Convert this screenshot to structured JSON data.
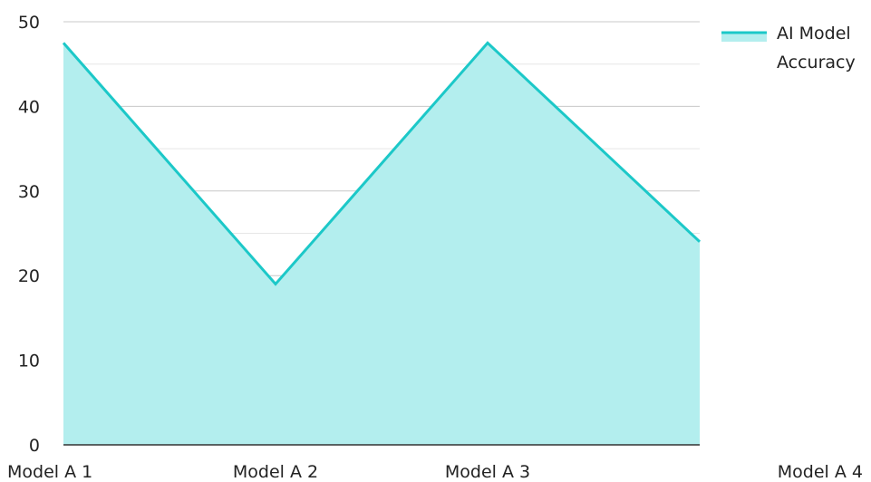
{
  "chart_data": {
    "type": "area",
    "categories": [
      "Model A 1",
      "Model A 2",
      "Model A 3",
      "Model A 4"
    ],
    "series": [
      {
        "name": "AI Model Accuracy",
        "values": [
          47.5,
          19,
          47.5,
          24
        ]
      }
    ],
    "title": "",
    "xlabel": "",
    "ylabel": "",
    "ylim": [
      0,
      50
    ],
    "yticks": [
      0,
      10,
      20,
      30,
      40,
      50
    ],
    "grid": true,
    "legend_position": "top-right",
    "legend": {
      "lines": [
        "AI Model",
        "Accuracy"
      ]
    },
    "colors": {
      "line": "#1cc8c8",
      "fill": "#b3eeee",
      "grid_major": "#c8c8c8",
      "grid_minor": "#e6e6e6",
      "axis": "#333333"
    }
  }
}
